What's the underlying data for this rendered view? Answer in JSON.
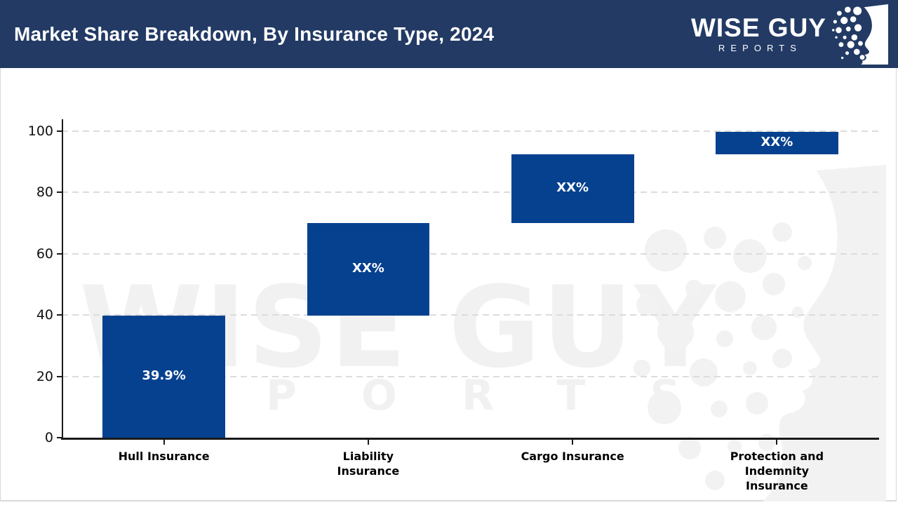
{
  "header": {
    "title": "Market Share Breakdown, By Insurance Type, 2024",
    "logo": {
      "name": "WISE GUY",
      "subtitle": "REPORTS"
    },
    "bg_color": "#223a64"
  },
  "watermark": {
    "line1": "WISE GUY",
    "line2": "PORTS"
  },
  "chart_data": {
    "type": "bar",
    "subtype": "floating-waterfall",
    "title": "Market Share Breakdown, By Insurance Type, 2024",
    "categories": [
      "Hull Insurance",
      "Liability\nInsurance",
      "Cargo Insurance",
      "Protection and\nIndemnity\nInsurance"
    ],
    "bars": [
      {
        "label": "Hull Insurance",
        "start": 0,
        "end": 39.9,
        "value_label": "39.9%"
      },
      {
        "label": "Liability Insurance",
        "start": 39.9,
        "end": 70.0,
        "value_label": "XX%"
      },
      {
        "label": "Cargo Insurance",
        "start": 70.0,
        "end": 92.5,
        "value_label": "XX%"
      },
      {
        "label": "Protection and Indemnity Insurance",
        "start": 92.5,
        "end": 99.8,
        "value_label": "XX%"
      }
    ],
    "xlabel": "",
    "ylabel": "",
    "ylim": [
      0,
      100
    ],
    "yticks": [
      0,
      20,
      40,
      60,
      80,
      100
    ],
    "grid": "horizontal-dashed",
    "legend": "none",
    "colors": {
      "bar": "#06418f",
      "axis": "#1a1a1a",
      "gridline": "#dcdcdc",
      "tick_label": "#111111",
      "value_label": "#ffffff"
    }
  }
}
